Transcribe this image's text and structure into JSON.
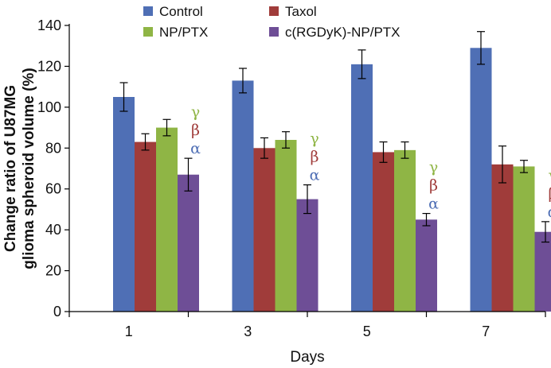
{
  "chart_data": {
    "type": "bar",
    "title": "",
    "xlabel": "Days",
    "ylabel_lines": [
      "Change ratio of U87MG",
      "glioma spheroid volume (%)"
    ],
    "ylim": [
      0,
      140
    ],
    "yticks": [
      "0",
      "20",
      "40",
      "60",
      "80",
      "100",
      "120",
      "140"
    ],
    "categories": [
      "1",
      "3",
      "5",
      "7"
    ],
    "legend_position": "top",
    "series": [
      {
        "name": "Control",
        "color": "#4f6fb5",
        "values": [
          105,
          113,
          121,
          129
        ],
        "errors": [
          7,
          6,
          7,
          8
        ]
      },
      {
        "name": "Taxol",
        "color": "#a03c3a",
        "values": [
          83,
          80,
          78,
          72
        ],
        "errors": [
          4,
          5,
          5,
          9
        ]
      },
      {
        "name": "NP/PTX",
        "color": "#8fb545",
        "values": [
          90,
          84,
          79,
          71
        ],
        "errors": [
          4,
          4,
          4,
          3
        ]
      },
      {
        "name": "c(RGDyK)-NP/PTX",
        "color": "#6e4e96",
        "values": [
          67,
          55,
          45,
          39
        ],
        "errors": [
          8,
          7,
          3,
          5
        ]
      }
    ],
    "annotations": {
      "symbols": [
        {
          "text": "γ",
          "color": "#8fb545"
        },
        {
          "text": "β",
          "color": "#a03c3a"
        },
        {
          "text": "α",
          "color": "#4f6fb5"
        }
      ]
    },
    "grid": false
  }
}
